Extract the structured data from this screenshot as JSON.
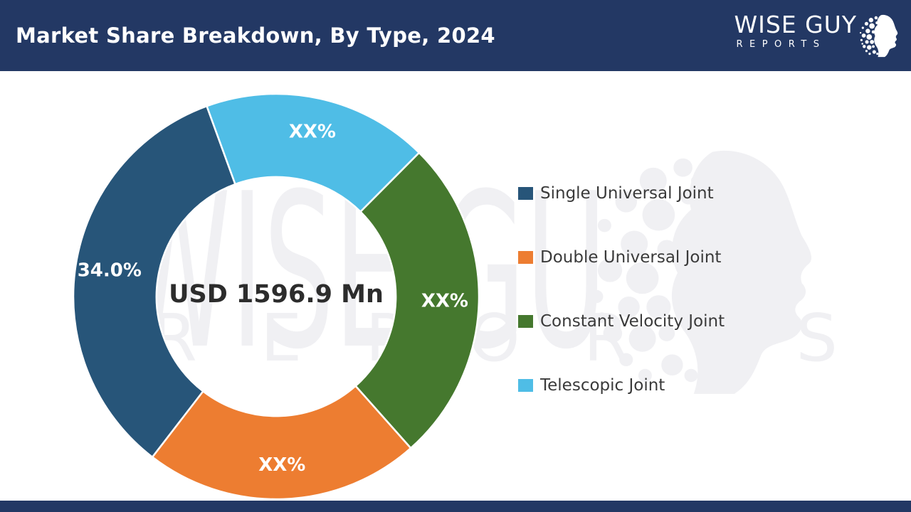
{
  "header": {
    "title": "Market Share Breakdown, By Type, 2024",
    "bg_color": "#233864",
    "logo": {
      "line1": "WISE GUY",
      "line2": "REPORTS",
      "face_icon": "dotted-head-profile"
    }
  },
  "footer": {
    "bg_color": "#233864"
  },
  "watermark": {
    "line1": "WISE GU",
    "line2": "R E P O R T S",
    "color": "#f0f0f3"
  },
  "chart_data": {
    "type": "pie",
    "subtype": "donut",
    "title": "Market Share Breakdown, By Type, 2024",
    "center_label": "USD 1596.9 Mn",
    "start_angle_deg": 110,
    "direction": "counterclockwise",
    "inner_radius_ratio": 0.59,
    "legend_position": "right",
    "slices": [
      {
        "label": "Single Universal Joint",
        "value_pct": 34.0,
        "display_label": "34.0%",
        "color": "#275579"
      },
      {
        "label": "Double Universal Joint",
        "value_pct": 22.0,
        "display_label": "XX%",
        "color": "#ed7d31"
      },
      {
        "label": "Constant Velocity Joint",
        "value_pct": 26.0,
        "display_label": "XX%",
        "color": "#45782e"
      },
      {
        "label": "Telescopic Joint",
        "value_pct": 18.0,
        "display_label": "XX%",
        "color": "#4fbde6"
      }
    ]
  }
}
